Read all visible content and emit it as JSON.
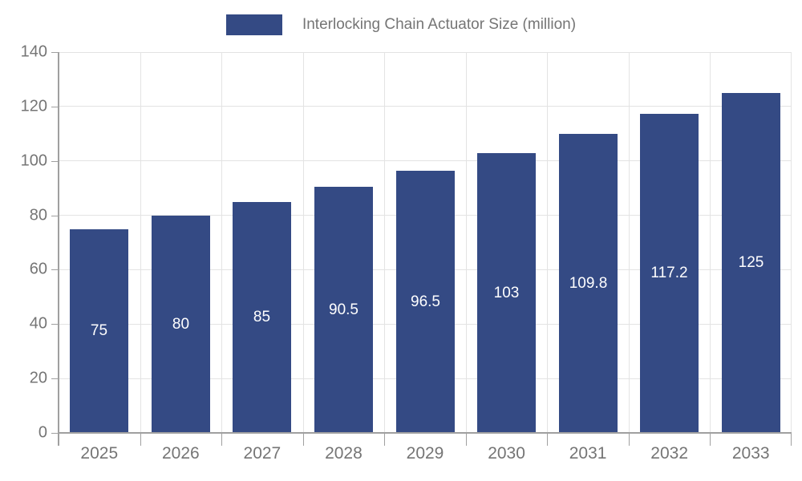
{
  "chart_data": {
    "type": "bar",
    "title": "Interlocking Chain Actuator Size (million)",
    "categories": [
      "2025",
      "2026",
      "2027",
      "2028",
      "2029",
      "2030",
      "2031",
      "2032",
      "2033"
    ],
    "values": [
      75,
      80,
      85,
      90.5,
      96.5,
      103,
      109.8,
      117.2,
      125
    ],
    "value_labels": [
      "75",
      "80",
      "85",
      "90.5",
      "96.5",
      "103",
      "109.8",
      "117.2",
      "125"
    ],
    "xlabel": "",
    "ylabel": "",
    "ylim": [
      0,
      140
    ],
    "ytick_step": 20,
    "ytick_labels": [
      "0",
      "20",
      "40",
      "60",
      "80",
      "100",
      "120",
      "140"
    ],
    "grid": true,
    "legend_position": "top",
    "colors": {
      "bar": "#344a84",
      "bar_value_label": "#ffffff",
      "axis_text": "#757575",
      "grid_line": "#e3e3e3",
      "axis_line": "#a0a0a0",
      "background": "#ffffff"
    }
  }
}
